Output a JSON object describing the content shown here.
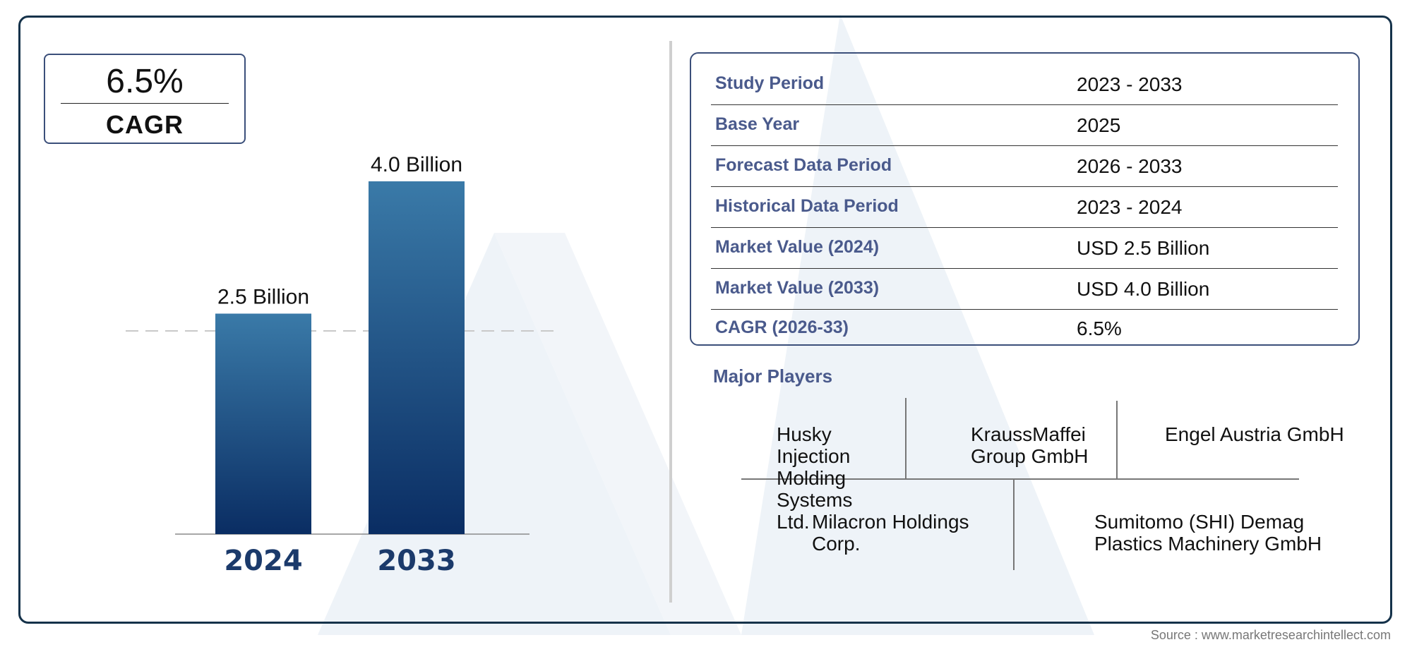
{
  "cagr_box": {
    "value": "6.5%",
    "label": "CAGR"
  },
  "chart_data": {
    "type": "bar",
    "categories": [
      "2024",
      "2033"
    ],
    "values": [
      2.5,
      4.0
    ],
    "data_labels": [
      "2.5 Billion",
      "4.0 Billion"
    ],
    "ylim": [
      0,
      4.0
    ],
    "title": "",
    "xlabel": "",
    "ylabel": "",
    "colors": {
      "bar_top": "#3a7aa8",
      "bar_bottom": "#0a2d63",
      "year_label": "#1b3a6b"
    }
  },
  "info_table": [
    {
      "key": "Study Period",
      "value": "2023 - 2033"
    },
    {
      "key": "Base Year",
      "value": "2025"
    },
    {
      "key": "Forecast Data Period",
      "value": "2026 - 2033"
    },
    {
      "key": "Historical Data Period",
      "value": "2023 - 2024"
    },
    {
      "key": "Market Value (2024)",
      "value": "USD 2.5 Billion"
    },
    {
      "key": "Market Value (2033)",
      "value": "USD 4.0 Billion"
    },
    {
      "key": "CAGR (2026-33)",
      "value": "6.5%"
    }
  ],
  "players": {
    "title": "Major Players",
    "names": [
      "Husky Injection Molding Systems Ltd.",
      "KraussMaffei Group GmbH",
      "Engel Austria GmbH",
      "Milacron Holdings Corp.",
      "Sumitomo (SHI) Demag Plastics Machinery GmbH"
    ]
  },
  "source": "Source : www.marketresearchintellect.com",
  "colors": {
    "frame": "#15324a",
    "accent_text": "#4a5a8c"
  }
}
